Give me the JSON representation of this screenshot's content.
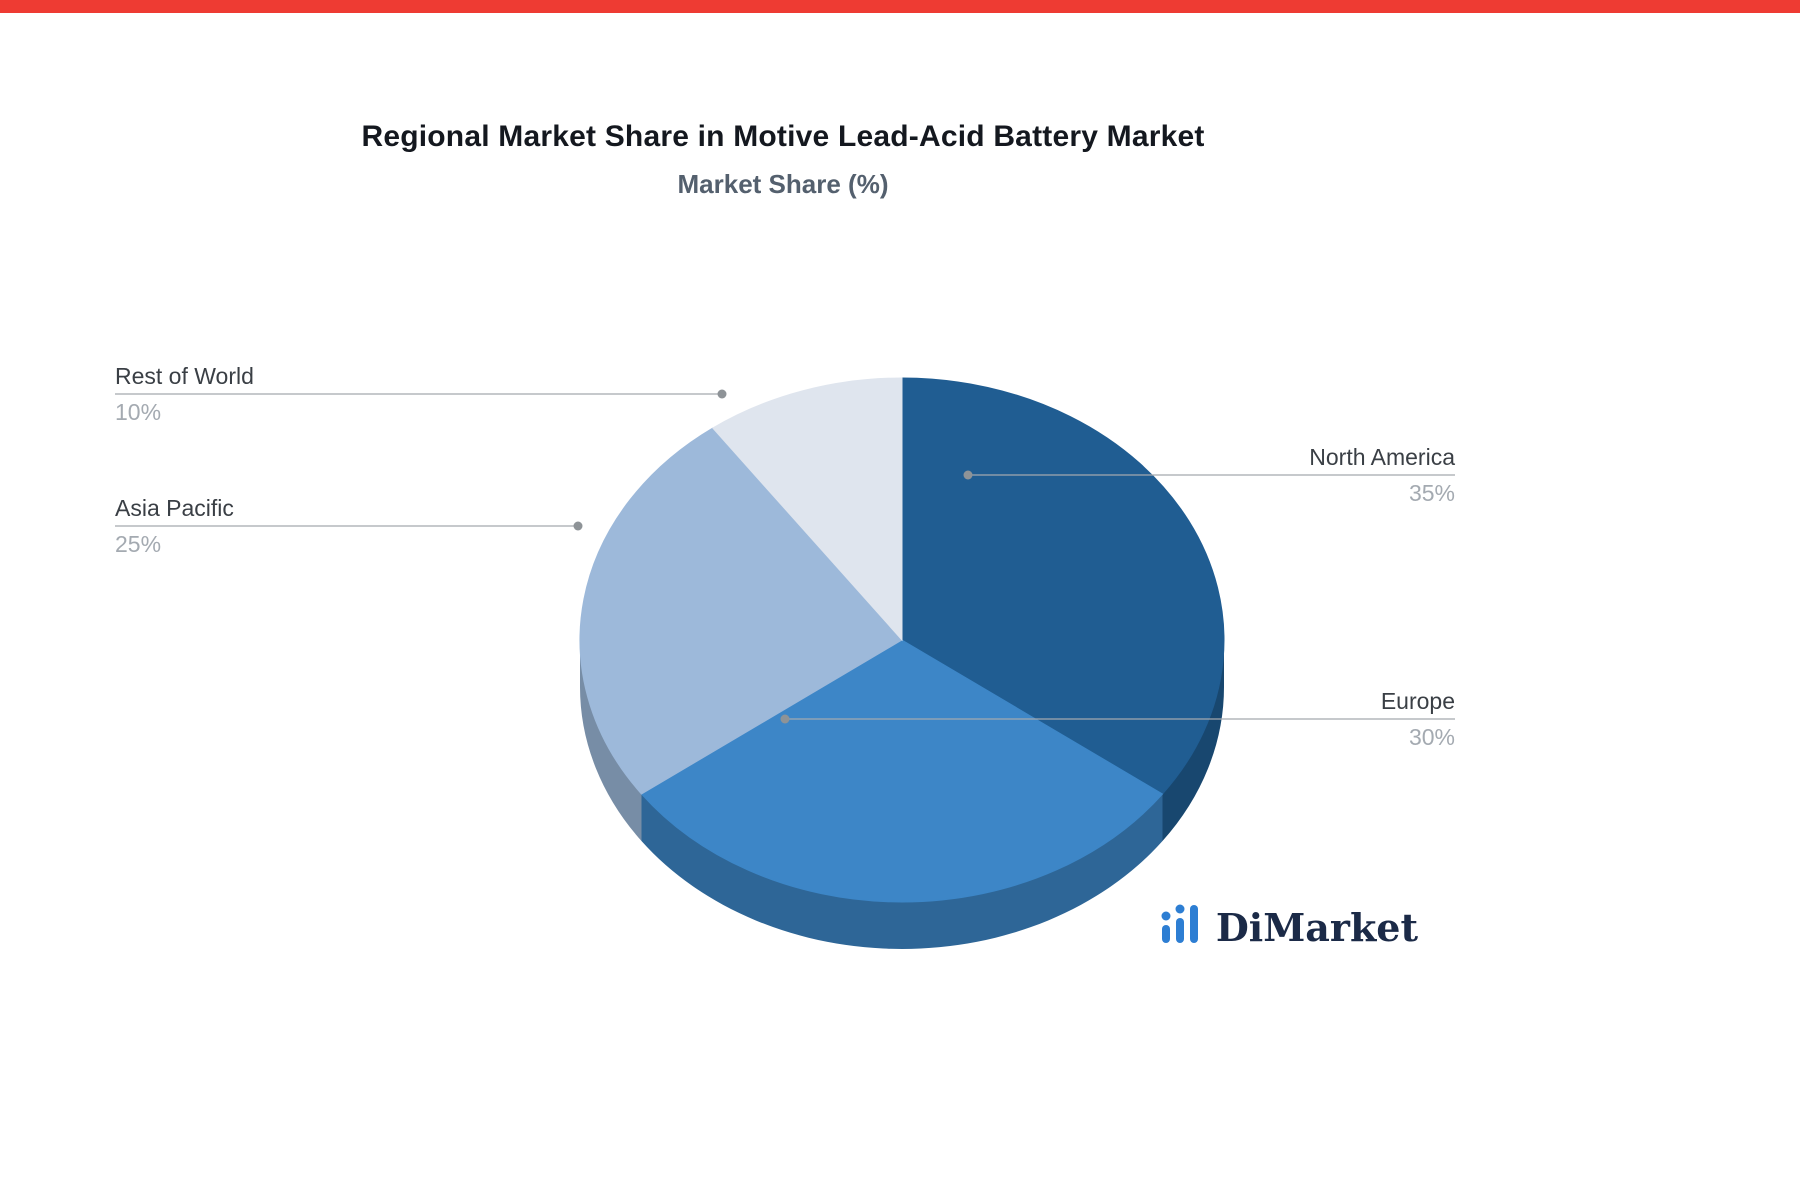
{
  "page": {
    "background": "#ffffff",
    "top_bar_color": "#ee3b33"
  },
  "header": {
    "title_color": "#14181f",
    "subtitle_color": "#54606e"
  },
  "chart_data": {
    "type": "pie",
    "title": "Regional Market Share in Motive Lead-Acid Battery Market",
    "subtitle": "Market Share (%)",
    "units": "%",
    "style": "3d",
    "start_angle_deg": 0,
    "direction": "clockwise",
    "legend_position": "none",
    "labels_style": "leader-lines",
    "slices": [
      {
        "label": "North America",
        "value": 35,
        "value_label": "35%",
        "color": "#205d92"
      },
      {
        "label": "Europe",
        "value": 30,
        "value_label": "30%",
        "color": "#3d86c7"
      },
      {
        "label": "Asia Pacific",
        "value": 25,
        "value_label": "25%",
        "color": "#9db9da"
      },
      {
        "label": "Rest of World",
        "value": 10,
        "value_label": "10%",
        "color": "#dfe5ee"
      }
    ],
    "callout_style": {
      "line_color": "#a4a9ae",
      "dot_color": "#8e9397",
      "label_color": "#3a3f45",
      "value_color": "#a4aab1"
    }
  },
  "branding": {
    "name": "DiMarket",
    "accent_color": "#2d7ed3",
    "text_color": "#1b2a47"
  }
}
